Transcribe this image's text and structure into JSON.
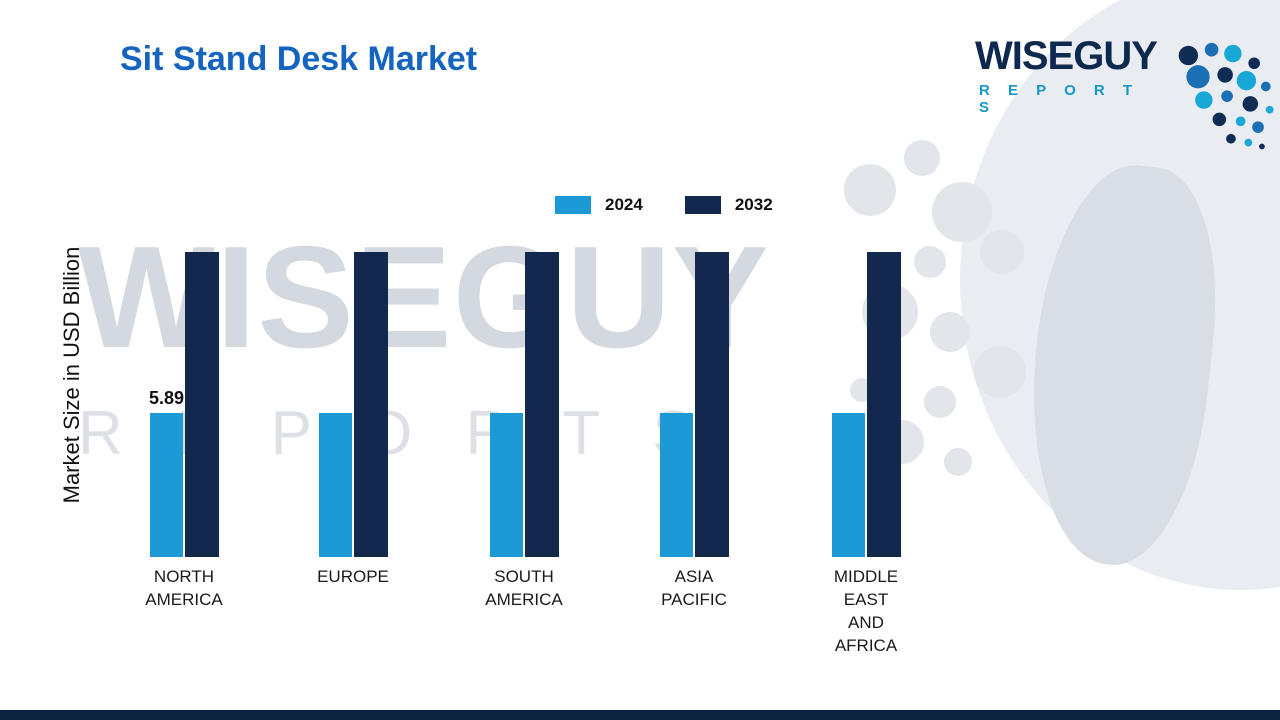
{
  "page": {
    "title": "Sit Stand Desk Market"
  },
  "brand": {
    "name": "WISEGUY",
    "tagline": "R E P O R T S"
  },
  "watermark": {
    "name": "WISEGUY",
    "tagline": "R E P O R T S"
  },
  "colors": {
    "title_blue": "#1565c0",
    "bar_2024": "#1b9ad6",
    "bar_2032": "#12294d",
    "accent_bottom": "#0d2440",
    "logo_navy": "#0e2950",
    "logo_teal": "#1498c8"
  },
  "chart_data": {
    "type": "bar",
    "title": "Sit Stand Desk Market",
    "categories": [
      "NORTH AMERICA",
      "EUROPE",
      "SOUTH AMERICA",
      "ASIA PACIFIC",
      "MIDDLE EAST AND AFRICA"
    ],
    "category_display": [
      "NORTH\nAMERICA",
      "EUROPE",
      "SOUTH\nAMERICA",
      "ASIA\nPACIFIC",
      "MIDDLE\nEAST\nAND\nAFRICA"
    ],
    "series": [
      {
        "name": "2024",
        "color": "#1b9ad6",
        "values": [
          5.89,
          5.89,
          5.89,
          5.89,
          5.89
        ]
      },
      {
        "name": "2032",
        "color": "#12294d",
        "values": [
          12.5,
          12.5,
          12.5,
          12.5,
          12.5
        ]
      }
    ],
    "data_labels": [
      "5.89",
      null,
      null,
      null,
      null
    ],
    "xlabel": "",
    "ylabel": "Market Size in USD Billion",
    "ylim": [
      0,
      14
    ],
    "grid": false,
    "legend_position": "top"
  }
}
